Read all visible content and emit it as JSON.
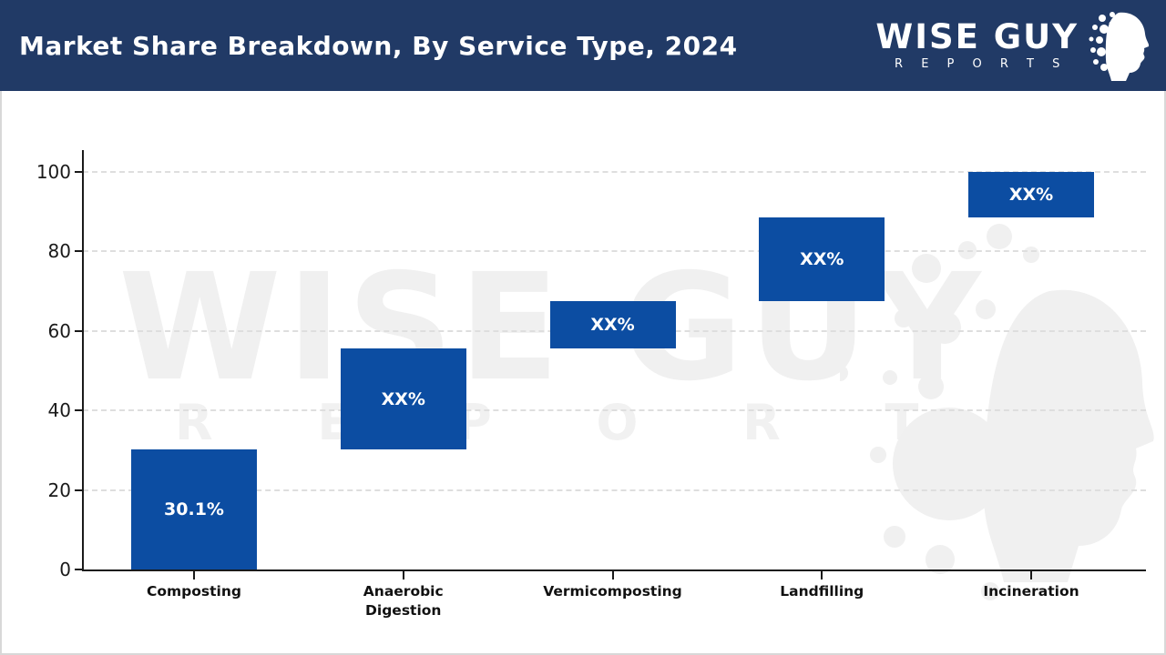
{
  "header": {
    "title": "Market Share Breakdown, By Service Type, 2024",
    "bg_color": "#213A66",
    "logo": {
      "line1": "WISE GUY",
      "line2": "R E P O R T S"
    }
  },
  "watermark": {
    "line1": "WISE GUY",
    "line2": "R E P O R T S"
  },
  "chart_data": {
    "type": "bar",
    "subtype": "waterfall",
    "title": "Market Share Breakdown, By Service Type, 2024",
    "categories": [
      "Composting",
      "Anaerobic\nDigestion",
      "Vermicomposting",
      "Landfilling",
      "Incineration"
    ],
    "segments": [
      {
        "category": "Composting",
        "start": 0,
        "end": 30.1,
        "label": "30.1%"
      },
      {
        "category": "Anaerobic Digestion",
        "start": 30.1,
        "end": 55.5,
        "label": "XX%"
      },
      {
        "category": "Vermicomposting",
        "start": 55.5,
        "end": 67.5,
        "label": "XX%"
      },
      {
        "category": "Landfilling",
        "start": 67.5,
        "end": 88.5,
        "label": "XX%"
      },
      {
        "category": "Incineration",
        "start": 88.5,
        "end": 100,
        "label": "XX%"
      }
    ],
    "yticks": [
      0,
      20,
      40,
      60,
      80,
      100
    ],
    "ylim": [
      0,
      100
    ],
    "xlabel": "",
    "ylabel": "",
    "grid": "horizontal-dashed",
    "legend": "none",
    "bar_color": "#0C4DA2",
    "bar_label_color": "#ffffff"
  }
}
